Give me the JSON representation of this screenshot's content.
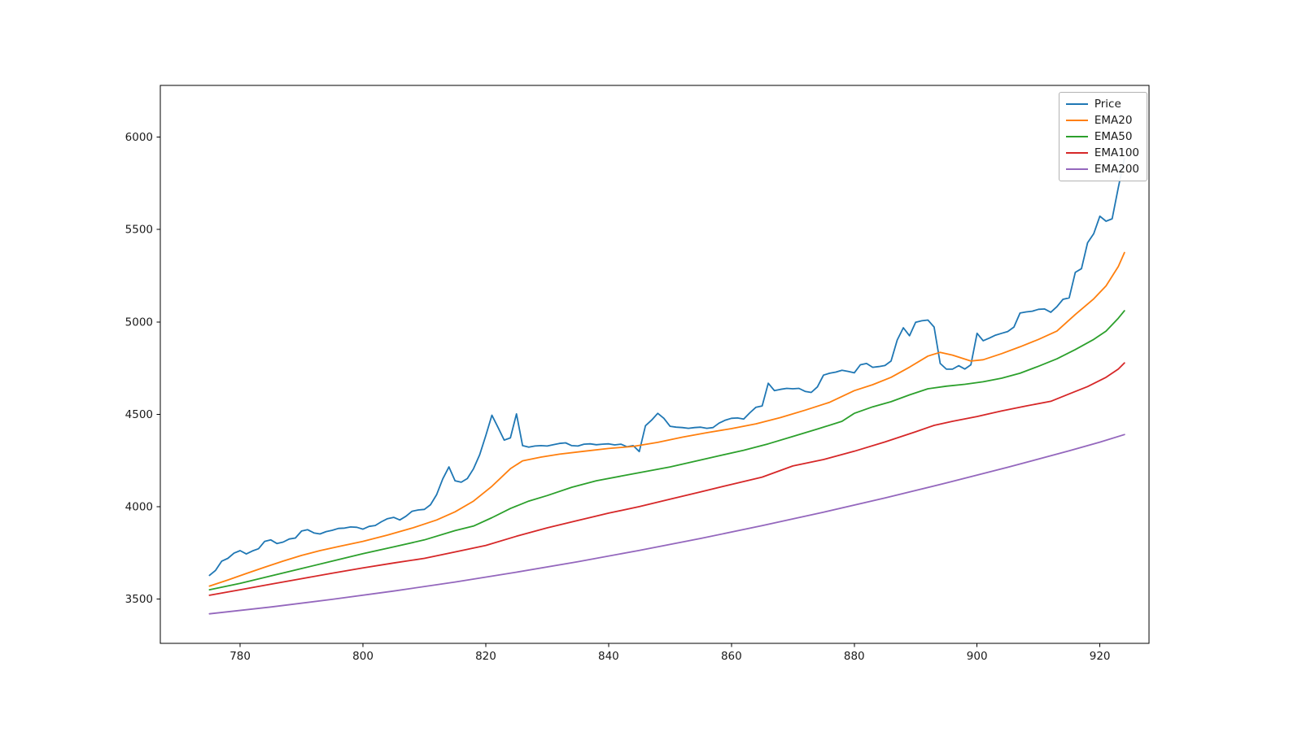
{
  "figure": {
    "background": "#ffffff"
  },
  "legend": {
    "position": "upper-right"
  },
  "chart_data": {
    "type": "line",
    "title": "",
    "xlabel": "",
    "ylabel": "",
    "grid": false,
    "legend_position": "upper right",
    "xlim": [
      767,
      928
    ],
    "ylim": [
      3260,
      6280
    ],
    "x_ticks": [
      780,
      800,
      820,
      840,
      860,
      880,
      900,
      920
    ],
    "y_ticks": [
      3500,
      4000,
      4500,
      5000,
      5500,
      6000
    ],
    "axis_color": "#000000",
    "tick_label_color": "#1a1a1a",
    "series": [
      {
        "name": "Price",
        "color": "#1f77b4",
        "x_start": 775,
        "x_step": 1,
        "values": [
          3628,
          3655,
          3705,
          3720,
          3748,
          3762,
          3744,
          3760,
          3772,
          3812,
          3820,
          3800,
          3808,
          3825,
          3830,
          3868,
          3875,
          3858,
          3852,
          3865,
          3872,
          3882,
          3884,
          3890,
          3888,
          3878,
          3893,
          3898,
          3918,
          3935,
          3942,
          3928,
          3948,
          3975,
          3982,
          3985,
          4010,
          4065,
          4150,
          4215,
          4140,
          4132,
          4152,
          4205,
          4280,
          4385,
          4495,
          4428,
          4360,
          4372,
          4502,
          4330,
          4322,
          4328,
          4330,
          4328,
          4335,
          4342,
          4345,
          4330,
          4328,
          4338,
          4340,
          4335,
          4338,
          4340,
          4334,
          4338,
          4324,
          4330,
          4298,
          4438,
          4468,
          4505,
          4478,
          4435,
          4430,
          4428,
          4424,
          4428,
          4430,
          4424,
          4428,
          4452,
          4468,
          4478,
          4480,
          4474,
          4508,
          4538,
          4545,
          4668,
          4628,
          4635,
          4640,
          4638,
          4640,
          4624,
          4618,
          4648,
          4712,
          4722,
          4728,
          4738,
          4732,
          4724,
          4768,
          4775,
          4754,
          4758,
          4764,
          4788,
          4902,
          4968,
          4925,
          4998,
          5006,
          5010,
          4972,
          4775,
          4744,
          4744,
          4763,
          4745,
          4768,
          4938,
          4898,
          4912,
          4928,
          4938,
          4948,
          4972,
          5048,
          5054,
          5058,
          5068,
          5070,
          5052,
          5082,
          5122,
          5130,
          5268,
          5288,
          5428,
          5478,
          5572,
          5545,
          5558,
          5728,
          5885
        ]
      },
      {
        "name": "EMA20",
        "color": "#ff7f0e",
        "points": [
          [
            775,
            3570
          ],
          [
            778,
            3603
          ],
          [
            781,
            3638
          ],
          [
            784,
            3672
          ],
          [
            787,
            3705
          ],
          [
            790,
            3736
          ],
          [
            793,
            3762
          ],
          [
            796,
            3784
          ],
          [
            800,
            3812
          ],
          [
            804,
            3846
          ],
          [
            808,
            3884
          ],
          [
            812,
            3928
          ],
          [
            815,
            3972
          ],
          [
            818,
            4030
          ],
          [
            821,
            4110
          ],
          [
            824,
            4205
          ],
          [
            826,
            4248
          ],
          [
            829,
            4268
          ],
          [
            832,
            4284
          ],
          [
            836,
            4300
          ],
          [
            840,
            4315
          ],
          [
            844,
            4326
          ],
          [
            848,
            4348
          ],
          [
            852,
            4376
          ],
          [
            856,
            4400
          ],
          [
            860,
            4422
          ],
          [
            864,
            4448
          ],
          [
            868,
            4482
          ],
          [
            872,
            4522
          ],
          [
            876,
            4565
          ],
          [
            880,
            4628
          ],
          [
            883,
            4660
          ],
          [
            886,
            4700
          ],
          [
            889,
            4755
          ],
          [
            892,
            4815
          ],
          [
            894,
            4835
          ],
          [
            896,
            4820
          ],
          [
            899,
            4788
          ],
          [
            901,
            4795
          ],
          [
            904,
            4828
          ],
          [
            907,
            4865
          ],
          [
            910,
            4905
          ],
          [
            913,
            4950
          ],
          [
            916,
            5040
          ],
          [
            919,
            5125
          ],
          [
            921,
            5195
          ],
          [
            923,
            5300
          ],
          [
            924,
            5375
          ]
        ]
      },
      {
        "name": "EMA50",
        "color": "#2ca02c",
        "points": [
          [
            775,
            3550
          ],
          [
            780,
            3585
          ],
          [
            785,
            3625
          ],
          [
            790,
            3665
          ],
          [
            795,
            3705
          ],
          [
            800,
            3745
          ],
          [
            805,
            3782
          ],
          [
            810,
            3820
          ],
          [
            815,
            3870
          ],
          [
            818,
            3895
          ],
          [
            821,
            3940
          ],
          [
            824,
            3990
          ],
          [
            827,
            4030
          ],
          [
            830,
            4060
          ],
          [
            834,
            4105
          ],
          [
            838,
            4140
          ],
          [
            842,
            4165
          ],
          [
            846,
            4190
          ],
          [
            850,
            4215
          ],
          [
            854,
            4245
          ],
          [
            858,
            4275
          ],
          [
            862,
            4305
          ],
          [
            866,
            4340
          ],
          [
            870,
            4380
          ],
          [
            874,
            4420
          ],
          [
            878,
            4462
          ],
          [
            880,
            4505
          ],
          [
            883,
            4540
          ],
          [
            886,
            4568
          ],
          [
            889,
            4605
          ],
          [
            892,
            4638
          ],
          [
            895,
            4652
          ],
          [
            898,
            4662
          ],
          [
            901,
            4676
          ],
          [
            904,
            4695
          ],
          [
            907,
            4722
          ],
          [
            910,
            4760
          ],
          [
            913,
            4800
          ],
          [
            916,
            4850
          ],
          [
            919,
            4905
          ],
          [
            921,
            4950
          ],
          [
            923,
            5020
          ],
          [
            924,
            5060
          ]
        ]
      },
      {
        "name": "EMA100",
        "color": "#d62728",
        "points": [
          [
            775,
            3520
          ],
          [
            780,
            3550
          ],
          [
            785,
            3580
          ],
          [
            790,
            3610
          ],
          [
            795,
            3640
          ],
          [
            800,
            3668
          ],
          [
            805,
            3695
          ],
          [
            810,
            3720
          ],
          [
            815,
            3755
          ],
          [
            820,
            3790
          ],
          [
            825,
            3840
          ],
          [
            830,
            3885
          ],
          [
            835,
            3925
          ],
          [
            840,
            3965
          ],
          [
            845,
            4000
          ],
          [
            850,
            4040
          ],
          [
            855,
            4080
          ],
          [
            860,
            4120
          ],
          [
            865,
            4160
          ],
          [
            870,
            4220
          ],
          [
            875,
            4255
          ],
          [
            880,
            4300
          ],
          [
            885,
            4350
          ],
          [
            890,
            4405
          ],
          [
            893,
            4440
          ],
          [
            896,
            4462
          ],
          [
            900,
            4488
          ],
          [
            904,
            4518
          ],
          [
            908,
            4545
          ],
          [
            912,
            4570
          ],
          [
            915,
            4610
          ],
          [
            918,
            4650
          ],
          [
            921,
            4700
          ],
          [
            923,
            4745
          ],
          [
            924,
            4778
          ]
        ]
      },
      {
        "name": "EMA200",
        "color": "#9467bd",
        "points": [
          [
            775,
            3420
          ],
          [
            785,
            3457
          ],
          [
            795,
            3498
          ],
          [
            805,
            3543
          ],
          [
            815,
            3592
          ],
          [
            825,
            3645
          ],
          [
            835,
            3702
          ],
          [
            845,
            3763
          ],
          [
            855,
            3828
          ],
          [
            865,
            3897
          ],
          [
            875,
            3970
          ],
          [
            885,
            4047
          ],
          [
            895,
            4128
          ],
          [
            905,
            4213
          ],
          [
            915,
            4302
          ],
          [
            920,
            4349
          ],
          [
            924,
            4390
          ]
        ]
      }
    ]
  }
}
